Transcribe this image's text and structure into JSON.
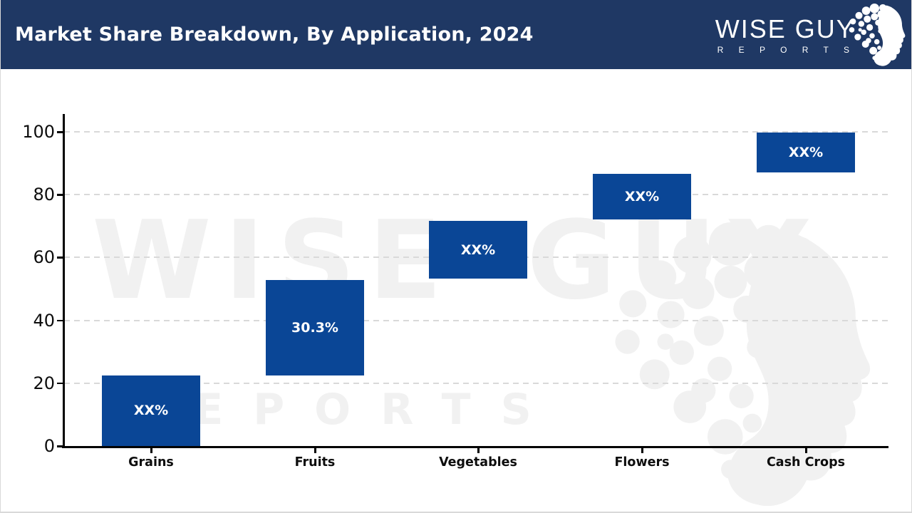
{
  "header": {
    "title": "Market Share Breakdown, By Application, 2024",
    "logo_line1": "WISE GUY",
    "logo_line2": "R E P O R T S"
  },
  "watermark": {
    "line1": "WISE GUY",
    "line2": "REPORTS"
  },
  "chart_data": {
    "type": "bar",
    "subtype": "waterfall",
    "title": "Market Share Breakdown, By Application, 2024",
    "categories": [
      "Grains",
      "Fruits",
      "Vegetables",
      "Flowers",
      "Cash Crops"
    ],
    "segments": [
      {
        "category": "Grains",
        "start": 0,
        "end": 22.5,
        "label": "XX%"
      },
      {
        "category": "Fruits",
        "start": 22.5,
        "end": 52.8,
        "label": "30.3%"
      },
      {
        "category": "Vegetables",
        "start": 53.2,
        "end": 71.7,
        "label": "XX%"
      },
      {
        "category": "Flowers",
        "start": 72.1,
        "end": 86.6,
        "label": "XX%"
      },
      {
        "category": "Cash Crops",
        "start": 87.1,
        "end": 99.8,
        "label": "XX%"
      }
    ],
    "yticks": [
      0,
      20,
      40,
      60,
      80,
      100
    ],
    "ylim": [
      0,
      105.7
    ],
    "grid": "horizontal-dashed",
    "legend": "none",
    "xlabel": "",
    "ylabel": "",
    "bar_color": "#0A4696",
    "bar_label_color": "#ffffff"
  },
  "colors": {
    "header_bg": "#1F3864",
    "bar": "#0A4696",
    "grid": "#d9d9d9",
    "axis": "#000000",
    "watermark": "#f1f1f1"
  }
}
